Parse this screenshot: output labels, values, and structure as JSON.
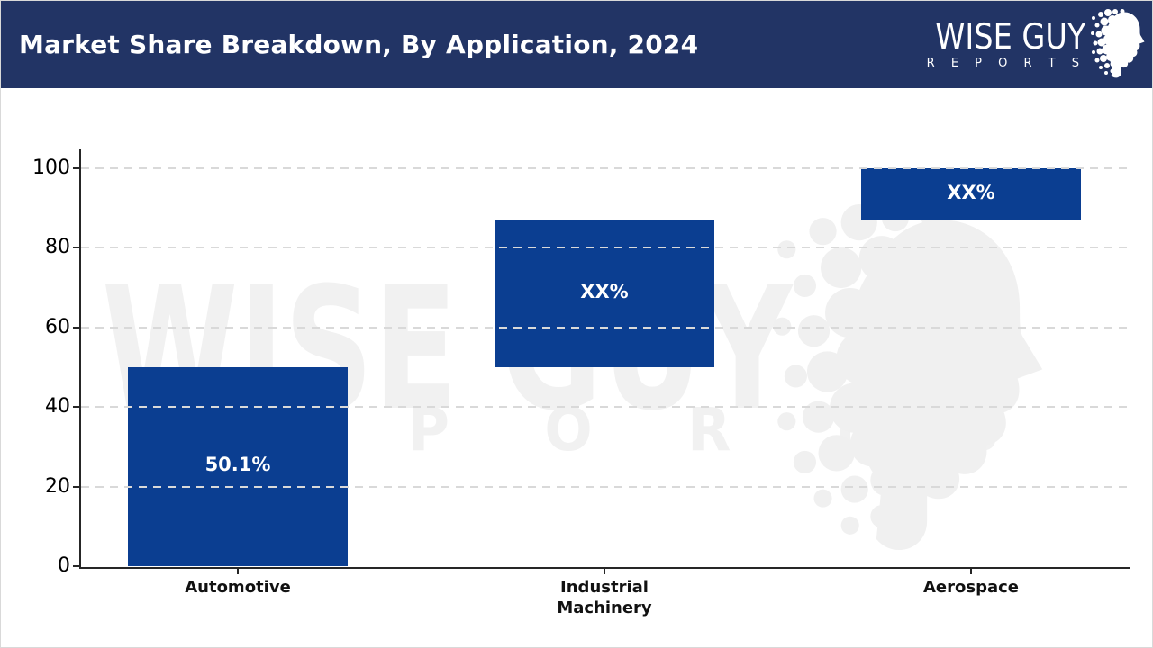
{
  "header": {
    "title": "Market Share Breakdown, By Application, 2024",
    "logo_line1": "WISE GUY",
    "logo_line2": "R E P O R T S",
    "bg_color": "#223465"
  },
  "watermark": {
    "line1": "WISE GUY",
    "line2": "R E P O R T S"
  },
  "chart_data": {
    "type": "bar",
    "variant": "waterfall",
    "title": "Market Share Breakdown, By Application, 2024",
    "categories": [
      "Automotive",
      "Industrial\nMachinery",
      "Aerospace"
    ],
    "segments": [
      {
        "category": "Automotive",
        "start": 0,
        "end": 50.1,
        "label": "50.1%"
      },
      {
        "category": "Industrial Machinery",
        "start": 50.1,
        "end": 87,
        "label": "XX%"
      },
      {
        "category": "Aerospace",
        "start": 87,
        "end": 100,
        "label": "XX%"
      }
    ],
    "yticks": [
      0,
      20,
      40,
      60,
      80,
      100
    ],
    "ylim": [
      0,
      105
    ],
    "xlabel": "",
    "ylabel": "",
    "grid": "horizontal-dashed",
    "legend": null,
    "bar_color": "#0b3e91",
    "bar_label_color": "#ffffff",
    "axis_color": "#262626",
    "grid_color": "#d9d9d9",
    "watermark_text": "WISE GUY REPORTS"
  }
}
